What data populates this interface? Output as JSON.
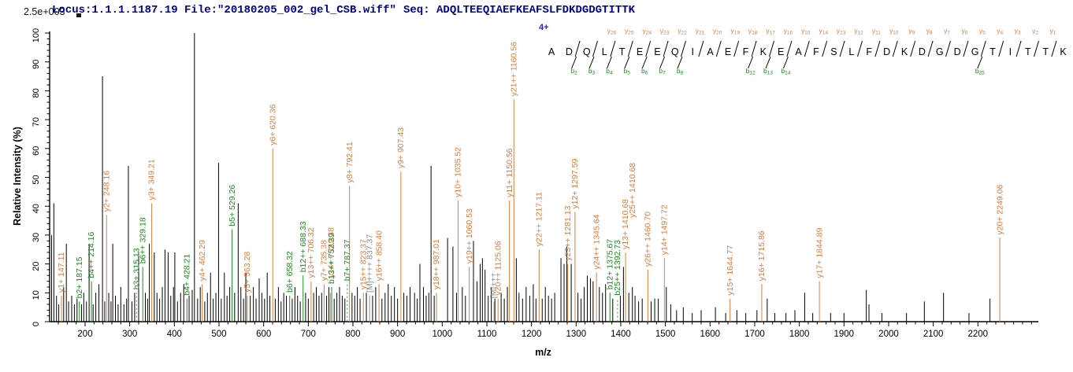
{
  "header": {
    "locus_file": "Locus:1.1.1.1187.19 File:\"20180205_002_gel_CSB.wiff\"",
    "seq_prefix": "Seq: ",
    "sequence": "ADQLTEEQIAEFKEAFSLFDKDGDGTITTK",
    "precursor_charge": "4+"
  },
  "ladder": {
    "y_ions": [
      {
        "label": "y",
        "n": 26,
        "gap": 4
      },
      {
        "label": "y",
        "n": 25,
        "gap": 5
      },
      {
        "label": "y",
        "n": 24,
        "gap": 6
      },
      {
        "label": "y",
        "n": 23,
        "gap": 7
      },
      {
        "label": "y",
        "n": 22,
        "gap": 8
      },
      {
        "label": "y",
        "n": 21,
        "gap": 9
      },
      {
        "label": "y",
        "n": 20,
        "gap": 10
      },
      {
        "label": "y",
        "n": 19,
        "gap": 11
      },
      {
        "label": "y",
        "n": 18,
        "gap": 12
      },
      {
        "label": "y",
        "n": 17,
        "gap": 13
      },
      {
        "label": "y",
        "n": 16,
        "gap": 14
      },
      {
        "label": "y",
        "n": 15,
        "gap": 15
      },
      {
        "label": "y",
        "n": 14,
        "gap": 16
      },
      {
        "label": "y",
        "n": 13,
        "gap": 17
      },
      {
        "label": "y",
        "n": 12,
        "gap": 18
      },
      {
        "label": "y",
        "n": 11,
        "gap": 19
      },
      {
        "label": "y",
        "n": 10,
        "gap": 20
      },
      {
        "label": "y",
        "n": 9,
        "gap": 21
      },
      {
        "label": "y",
        "n": 8,
        "gap": 22
      },
      {
        "label": "y",
        "n": 7,
        "gap": 23
      },
      {
        "label": "y",
        "n": 6,
        "gap": 24
      },
      {
        "label": "y",
        "n": 5,
        "gap": 25
      },
      {
        "label": "y",
        "n": 4,
        "gap": 26
      },
      {
        "label": "y",
        "n": 3,
        "gap": 27
      },
      {
        "label": "y",
        "n": 2,
        "gap": 28
      },
      {
        "label": "y",
        "n": 1,
        "gap": 29
      }
    ],
    "b_ions": [
      {
        "label": "b",
        "n": 2,
        "gap": 2
      },
      {
        "label": "b",
        "n": 3,
        "gap": 3
      },
      {
        "label": "b",
        "n": 4,
        "gap": 4
      },
      {
        "label": "b",
        "n": 5,
        "gap": 5
      },
      {
        "label": "b",
        "n": 6,
        "gap": 6
      },
      {
        "label": "b",
        "n": 7,
        "gap": 7
      },
      {
        "label": "b",
        "n": 8,
        "gap": 8
      },
      {
        "label": "b",
        "n": 12,
        "gap": 12
      },
      {
        "label": "b",
        "n": 13,
        "gap": 13
      },
      {
        "label": "b",
        "n": 14,
        "gap": 14
      },
      {
        "label": "b",
        "n": 25,
        "gap": 25
      }
    ]
  },
  "chart_data": {
    "type": "bar",
    "subtype": "centroided-msms-spectrum",
    "title": "",
    "xlabel": "m/z",
    "ylabel": "Relative  Intensity (%)",
    "scale_label": "2.5e+003",
    "xlim": [
      121,
      2330
    ],
    "ylim": [
      0,
      100
    ],
    "x_major_ticks": [
      200,
      300,
      400,
      500,
      600,
      700,
      800,
      900,
      1000,
      1100,
      1200,
      1300,
      1400,
      1500,
      1600,
      1700,
      1800,
      1900,
      2000,
      2100,
      2200
    ],
    "x_minor_step": 20,
    "y_major_step": 10,
    "y_minor_step": 2,
    "grid": false,
    "legend": "none",
    "colors": {
      "y_ion": "#DD7C3F",
      "b_ion": "#1E8A1E",
      "precursor": "#8C8C8C",
      "peak_default": "#000000",
      "header_navy": "#00008B",
      "charge_blue": "#2222CC"
    },
    "series": [
      {
        "name": "y-ions",
        "color": "#DD7C3F",
        "peaks": [
          {
            "label": "y1+ 147.11",
            "mz": 147.11,
            "intensity": 9
          },
          {
            "label": "y2+ 248.16",
            "mz": 248.16,
            "intensity": 37
          },
          {
            "label": "y3+ 349.21",
            "mz": 349.21,
            "intensity": 41
          },
          {
            "label": "y4+ 462.29",
            "mz": 462.29,
            "intensity": 13
          },
          {
            "label": "y5+ 563.28",
            "mz": 563.28,
            "intensity": 9
          },
          {
            "label": "y6+ 620.36",
            "mz": 620.36,
            "intensity": 60
          },
          {
            "label": "y13++ 706.32",
            "mz": 706.32,
            "intensity": 14
          },
          {
            "label": "y7+ 735.38",
            "mz": 735.38,
            "intensity": 13
          },
          {
            "label": "y14++ 749.38",
            "mz": 749.38,
            "intensity": 10,
            "dx": 1,
            "dy": -15
          },
          {
            "label": "y8+ 792.41",
            "mz": 792.41,
            "intensity": 47
          },
          {
            "label": "y15++ 823.37",
            "mz": 823.37,
            "intensity": 10
          },
          {
            "label": "y16++ 858.40",
            "mz": 858.4,
            "intensity": 13
          },
          {
            "label": "y9+ 907.43",
            "mz": 907.43,
            "intensity": 52
          },
          {
            "label": "y18++ 987.01",
            "mz": 987.01,
            "intensity": 10
          },
          {
            "label": "y10+ 1035.52",
            "mz": 1035.52,
            "intensity": 42
          },
          {
            "label": "y19++ 1060.53",
            "mz": 1060.53,
            "intensity": 19
          },
          {
            "label": "y20++ 1125.06",
            "mz": 1125.06,
            "intensity": 8
          },
          {
            "label": "y11+ 1150.56",
            "mz": 1150.56,
            "intensity": 42
          },
          {
            "label": "y21++ 1160.56",
            "mz": 1160.56,
            "intensity": 77
          },
          {
            "label": "y22++ 1217.11",
            "mz": 1217.11,
            "intensity": 25
          },
          {
            "label": "y23++ 1281.13",
            "mz": 1281.13,
            "intensity": 20
          },
          {
            "label": "y12+ 1297.59",
            "mz": 1297.59,
            "intensity": 38
          },
          {
            "label": "y24++ 1345.64",
            "mz": 1345.64,
            "intensity": 17
          },
          {
            "label": "y13+ 1410.68",
            "mz": 1410.68,
            "intensity": 24
          },
          {
            "label": "y25++ 1410.68",
            "mz": 1410.68,
            "intensity": 24,
            "dx": 9,
            "dy": -40,
            "noline": true
          },
          {
            "label": "y26++ 1460.70",
            "mz": 1460.7,
            "intensity": 18
          },
          {
            "label": "y14+ 1497.72",
            "mz": 1497.72,
            "intensity": 22
          },
          {
            "label": "y15+ 1644.77",
            "mz": 1644.77,
            "intensity": 8
          },
          {
            "label": "y16+ 1715.86",
            "mz": 1715.86,
            "intensity": 13
          },
          {
            "label": "y17+ 1844.89",
            "mz": 1844.89,
            "intensity": 14
          },
          {
            "label": "y20+ 2249.06",
            "mz": 2249.06,
            "intensity": 29
          }
        ]
      },
      {
        "name": "b-ions",
        "color": "#1E8A1E",
        "peaks": [
          {
            "label": "b2+ 187.15",
            "mz": 187.15,
            "intensity": 7
          },
          {
            "label": "b4++ 214.16",
            "mz": 214.16,
            "intensity": 14
          },
          {
            "label": "b3+ 315.13",
            "mz": 315.13,
            "intensity": 10,
            "dashed": true
          },
          {
            "label": "b6++ 329.18",
            "mz": 329.18,
            "intensity": 19
          },
          {
            "label": "b4+ 428.21",
            "mz": 428.21,
            "intensity": 8
          },
          {
            "label": "b5+ 529.26",
            "mz": 529.26,
            "intensity": 32
          },
          {
            "label": "b6+ 658.32",
            "mz": 658.32,
            "intensity": 9
          },
          {
            "label": "b12++ 688.33",
            "mz": 688.33,
            "intensity": 16
          },
          {
            "label": "b13++ 752.39",
            "mz": 752.39,
            "intensity": 12
          },
          {
            "label": "b7+ 787.37",
            "mz": 787.37,
            "intensity": 13,
            "dashed": true
          },
          {
            "label": "b12+ 1375.67",
            "mz": 1375.67,
            "intensity": 10
          },
          {
            "label": "b25++ 1392.73",
            "mz": 1392.73,
            "intensity": 8,
            "dashed": true
          }
        ]
      },
      {
        "name": "precursor",
        "color": "#8C8C8C",
        "peaks": [
          {
            "label": "[M]++++ 837.37",
            "mz": 837.37,
            "intensity": 9
          },
          {
            "label": "[M]+++",
            "mz": 1116.2,
            "intensity": 7,
            "dx": -1
          }
        ]
      }
    ],
    "baseline_peaks": [
      [
        125,
        30
      ],
      [
        130,
        41
      ],
      [
        136,
        9
      ],
      [
        141,
        6
      ],
      [
        152,
        12
      ],
      [
        158,
        27
      ],
      [
        163,
        7
      ],
      [
        170,
        9
      ],
      [
        176,
        6
      ],
      [
        182,
        8
      ],
      [
        192,
        6
      ],
      [
        197,
        10
      ],
      [
        203,
        7
      ],
      [
        209,
        27
      ],
      [
        218,
        6
      ],
      [
        224,
        10
      ],
      [
        231,
        13
      ],
      [
        239,
        85
      ],
      [
        244,
        7
      ],
      [
        253,
        10
      ],
      [
        258,
        7
      ],
      [
        262,
        27
      ],
      [
        268,
        9
      ],
      [
        274,
        6
      ],
      [
        280,
        12
      ],
      [
        287,
        6
      ],
      [
        293,
        8
      ],
      [
        297,
        54
      ],
      [
        305,
        7
      ],
      [
        311,
        10
      ],
      [
        320,
        24
      ],
      [
        335,
        10
      ],
      [
        340,
        8
      ],
      [
        344,
        27
      ],
      [
        355,
        24
      ],
      [
        361,
        10
      ],
      [
        367,
        8
      ],
      [
        373,
        12
      ],
      [
        379,
        25
      ],
      [
        386,
        24
      ],
      [
        392,
        9
      ],
      [
        398,
        12
      ],
      [
        401,
        24
      ],
      [
        407,
        7
      ],
      [
        414,
        10
      ],
      [
        421,
        13
      ],
      [
        433,
        9
      ],
      [
        440,
        11
      ],
      [
        445,
        100
      ],
      [
        452,
        8
      ],
      [
        458,
        12
      ],
      [
        468,
        7
      ],
      [
        474,
        10
      ],
      [
        481,
        17
      ],
      [
        487,
        8
      ],
      [
        493,
        10
      ],
      [
        499,
        55
      ],
      [
        505,
        8
      ],
      [
        512,
        17
      ],
      [
        518,
        9
      ],
      [
        524,
        12
      ],
      [
        535,
        10
      ],
      [
        543,
        41
      ],
      [
        549,
        12
      ],
      [
        555,
        8
      ],
      [
        560,
        17
      ],
      [
        570,
        9
      ],
      [
        577,
        12
      ],
      [
        583,
        8
      ],
      [
        590,
        15
      ],
      [
        596,
        10
      ],
      [
        602,
        8
      ],
      [
        608,
        17
      ],
      [
        614,
        9
      ],
      [
        626,
        8
      ],
      [
        633,
        12
      ],
      [
        639,
        7
      ],
      [
        645,
        10
      ],
      [
        651,
        9
      ],
      [
        664,
        8
      ],
      [
        670,
        12
      ],
      [
        676,
        9
      ],
      [
        682,
        7
      ],
      [
        694,
        10
      ],
      [
        700,
        8
      ],
      [
        712,
        10
      ],
      [
        718,
        12
      ],
      [
        724,
        9
      ],
      [
        730,
        10
      ],
      [
        741,
        9
      ],
      [
        746,
        12
      ],
      [
        758,
        8
      ],
      [
        764,
        10
      ],
      [
        770,
        12
      ],
      [
        776,
        9
      ],
      [
        782,
        8
      ],
      [
        798,
        10
      ],
      [
        804,
        9
      ],
      [
        810,
        12
      ],
      [
        816,
        8
      ],
      [
        830,
        10
      ],
      [
        844,
        9
      ],
      [
        851,
        12
      ],
      [
        865,
        8
      ],
      [
        872,
        10
      ],
      [
        879,
        13
      ],
      [
        886,
        9
      ],
      [
        893,
        12
      ],
      [
        900,
        8
      ],
      [
        914,
        10
      ],
      [
        921,
        9
      ],
      [
        928,
        12
      ],
      [
        938,
        10
      ],
      [
        944,
        8
      ],
      [
        950,
        20
      ],
      [
        958,
        12
      ],
      [
        964,
        9
      ],
      [
        970,
        10
      ],
      [
        975,
        54
      ],
      [
        982,
        9
      ],
      [
        1012,
        29
      ],
      [
        1024,
        26
      ],
      [
        1032,
        10
      ],
      [
        1045,
        12
      ],
      [
        1052,
        9
      ],
      [
        1070,
        28
      ],
      [
        1078,
        14
      ],
      [
        1085,
        20
      ],
      [
        1090,
        22
      ],
      [
        1096,
        18
      ],
      [
        1103,
        9
      ],
      [
        1110,
        12
      ],
      [
        1118,
        8
      ],
      [
        1132,
        10
      ],
      [
        1139,
        8
      ],
      [
        1146,
        12
      ],
      [
        1166,
        22
      ],
      [
        1172,
        10
      ],
      [
        1180,
        8
      ],
      [
        1188,
        12
      ],
      [
        1196,
        9
      ],
      [
        1204,
        13
      ],
      [
        1210,
        8
      ],
      [
        1224,
        8
      ],
      [
        1231,
        12
      ],
      [
        1238,
        9
      ],
      [
        1245,
        8
      ],
      [
        1252,
        10
      ],
      [
        1266,
        22
      ],
      [
        1273,
        20
      ],
      [
        1279,
        26
      ],
      [
        1289,
        20
      ],
      [
        1304,
        10
      ],
      [
        1311,
        8
      ],
      [
        1318,
        12
      ],
      [
        1325,
        16
      ],
      [
        1332,
        15
      ],
      [
        1338,
        14
      ],
      [
        1352,
        12
      ],
      [
        1359,
        10
      ],
      [
        1366,
        13
      ],
      [
        1382,
        8
      ],
      [
        1399,
        9
      ],
      [
        1406,
        19
      ],
      [
        1418,
        10
      ],
      [
        1426,
        12
      ],
      [
        1432,
        9
      ],
      [
        1440,
        7
      ],
      [
        1448,
        8
      ],
      [
        1468,
        7
      ],
      [
        1476,
        8
      ],
      [
        1484,
        8
      ],
      [
        1502,
        12
      ],
      [
        1512,
        6
      ],
      [
        1525,
        4
      ],
      [
        1540,
        5
      ],
      [
        1560,
        3
      ],
      [
        1580,
        4
      ],
      [
        1612,
        5
      ],
      [
        1635,
        3
      ],
      [
        1660,
        4
      ],
      [
        1680,
        3
      ],
      [
        1705,
        4
      ],
      [
        1728,
        8
      ],
      [
        1745,
        3
      ],
      [
        1770,
        3
      ],
      [
        1790,
        4
      ],
      [
        1812,
        10
      ],
      [
        1830,
        3
      ],
      [
        1870,
        3
      ],
      [
        1900,
        3
      ],
      [
        1950,
        11
      ],
      [
        1956,
        6
      ],
      [
        1985,
        3
      ],
      [
        2040,
        3
      ],
      [
        2080,
        7
      ],
      [
        2123,
        10
      ],
      [
        2180,
        3
      ],
      [
        2227,
        8
      ]
    ]
  }
}
